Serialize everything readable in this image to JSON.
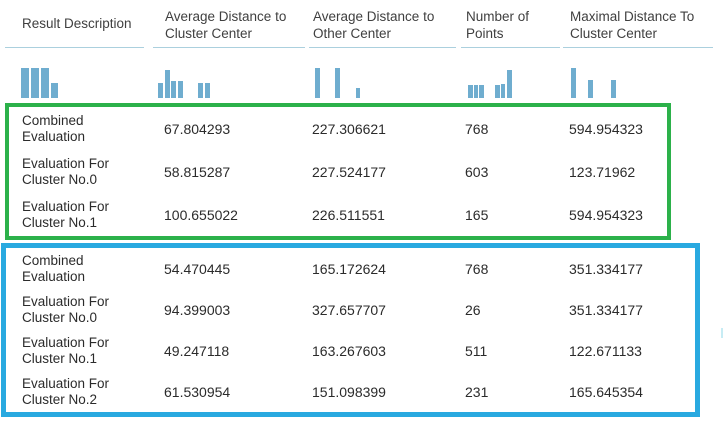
{
  "colors": {
    "bar": "#6fadcf",
    "header_rule": "#abd0de",
    "green_box": "#2cb14a",
    "blue_box": "#29a9e0"
  },
  "table": {
    "columns": [
      {
        "label": "Result Description",
        "histogram": [
          [
            21,
            8,
            30
          ],
          [
            31,
            8,
            30
          ],
          [
            41,
            8,
            30
          ],
          [
            51,
            7,
            15
          ]
        ]
      },
      {
        "label": "Average Distance to Cluster Center",
        "histogram": [
          [
            158,
            5,
            15
          ],
          [
            164.5,
            5,
            28
          ],
          [
            171,
            5,
            17
          ],
          [
            177.5,
            5,
            17
          ],
          [
            198,
            5,
            15
          ],
          [
            204.5,
            5,
            15
          ]
        ]
      },
      {
        "label": "Average Distance to Other Center",
        "histogram": [
          [
            315,
            5,
            30
          ],
          [
            335,
            5,
            30
          ],
          [
            356,
            4,
            10
          ]
        ]
      },
      {
        "label": "Number of Points",
        "histogram": [
          [
            468,
            4.5,
            13
          ],
          [
            473.5,
            4.5,
            13
          ],
          [
            479,
            4.5,
            13
          ],
          [
            495,
            4.5,
            13
          ],
          [
            500.5,
            4.5,
            14
          ],
          [
            507,
            4.5,
            28
          ]
        ]
      },
      {
        "label": "Maximal Distance To Cluster Center",
        "histogram": [
          [
            571,
            5,
            30
          ],
          [
            588,
            4.5,
            18
          ],
          [
            611,
            5,
            18
          ]
        ]
      }
    ],
    "groups": [
      {
        "name": "green-group",
        "border_color": "#2cb14a",
        "rows": [
          {
            "desc": "Combined\nEvaluation",
            "avg_to_cluster": "67.804293",
            "avg_to_other": "227.306621",
            "points": "768",
            "max_to_cluster": "594.954323"
          },
          {
            "desc": "Evaluation For\nCluster No.0",
            "avg_to_cluster": "58.815287",
            "avg_to_other": "227.524177",
            "points": "603",
            "max_to_cluster": "123.71962"
          },
          {
            "desc": "Evaluation For\nCluster No.1",
            "avg_to_cluster": "100.655022",
            "avg_to_other": "226.511551",
            "points": "165",
            "max_to_cluster": "594.954323"
          }
        ]
      },
      {
        "name": "blue-group",
        "border_color": "#29a9e0",
        "rows": [
          {
            "desc": "Combined\nEvaluation",
            "avg_to_cluster": "54.470445",
            "avg_to_other": "165.172624",
            "points": "768",
            "max_to_cluster": "351.334177"
          },
          {
            "desc": "Evaluation For\nCluster No.0",
            "avg_to_cluster": "94.399003",
            "avg_to_other": "327.657707",
            "points": "26",
            "max_to_cluster": "351.334177"
          },
          {
            "desc": "Evaluation For\nCluster No.1",
            "avg_to_cluster": "49.247118",
            "avg_to_other": "163.267603",
            "points": "511",
            "max_to_cluster": "122.671133"
          },
          {
            "desc": "Evaluation For\nCluster No.2",
            "avg_to_cluster": "61.530954",
            "avg_to_other": "151.098399",
            "points": "231",
            "max_to_cluster": "165.645354"
          }
        ]
      }
    ]
  }
}
